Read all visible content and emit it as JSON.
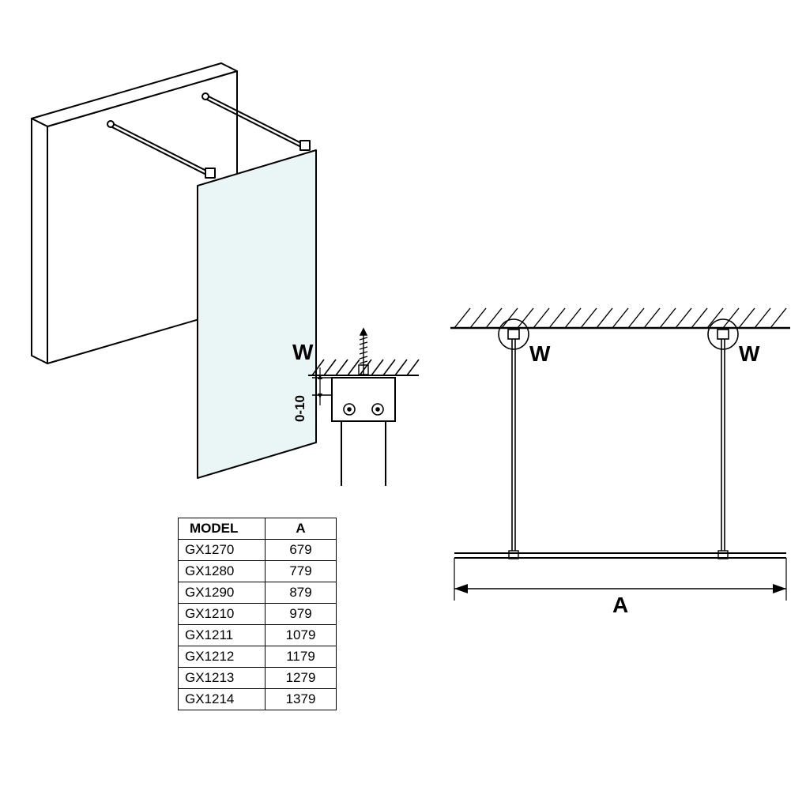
{
  "colors": {
    "stroke": "#000000",
    "glass_fill": "#eaf6f5",
    "glass_stroke": "#000000",
    "background": "#ffffff",
    "hatch": "#000000"
  },
  "line_widths": {
    "thick": 3,
    "medium": 2,
    "thin": 1.2
  },
  "iso_view": {
    "note": "3D isometric view of wall-mounted glass panel with two support bars"
  },
  "detail_W": {
    "label": "W",
    "tolerance_label": "0-10"
  },
  "top_view": {
    "label_W_left": "W",
    "label_W_right": "W",
    "dimension_label": "A"
  },
  "table": {
    "columns": [
      "MODEL",
      "A"
    ],
    "rows": [
      [
        "GX1270",
        "679"
      ],
      [
        "GX1280",
        "779"
      ],
      [
        "GX1290",
        "879"
      ],
      [
        "GX1210",
        "979"
      ],
      [
        "GX1211",
        "1079"
      ],
      [
        "GX1212",
        "1179"
      ],
      [
        "GX1213",
        "1279"
      ],
      [
        "GX1214",
        "1379"
      ]
    ]
  }
}
